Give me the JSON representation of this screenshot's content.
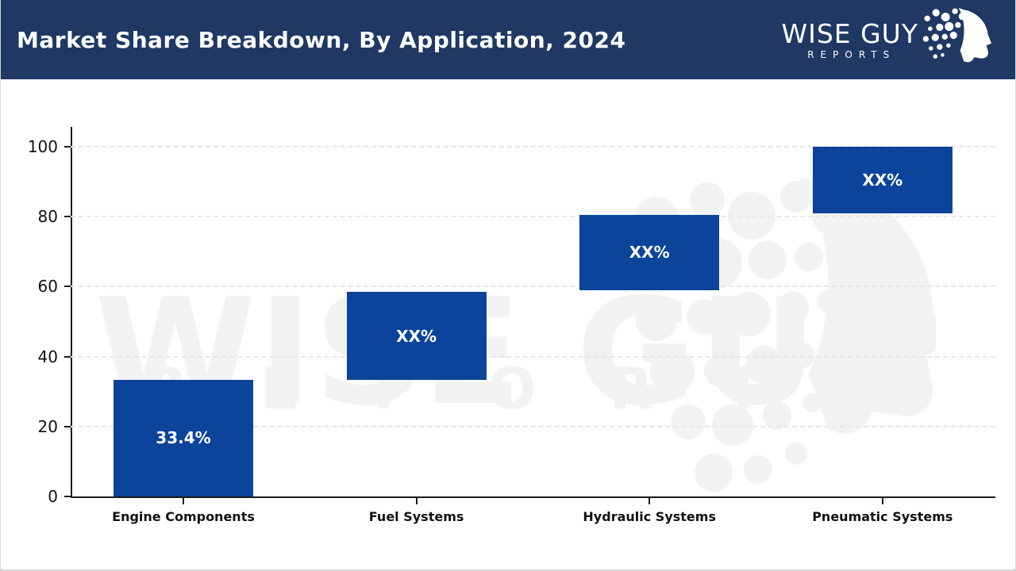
{
  "header": {
    "title": "Market Share Breakdown, By Application, 2024",
    "bg_color": "#1f3864",
    "logo": {
      "wordmark": "WISE GUY",
      "subtext": "REPORTS",
      "head_icon": "dotted-face-profile"
    }
  },
  "watermark": {
    "line1": "WISE GUY",
    "line2": "REPORTS",
    "color": "#f2f2f2"
  },
  "chart_data": {
    "type": "bar",
    "subtype": "floating-waterfall",
    "title": "Market Share Breakdown, By Application, 2024",
    "categories": [
      "Engine Components",
      "Fuel Systems",
      "Hydraulic Systems",
      "Pneumatic Systems"
    ],
    "segments": [
      {
        "category": "Engine Components",
        "start": 0,
        "end": 33.4,
        "label": "33.4%"
      },
      {
        "category": "Fuel Systems",
        "start": 33.4,
        "end": 58.4,
        "label": "XX%"
      },
      {
        "category": "Hydraulic Systems",
        "start": 59,
        "end": 80.6,
        "label": "XX%"
      },
      {
        "category": "Pneumatic Systems",
        "start": 81,
        "end": 100,
        "label": "XX%"
      }
    ],
    "yticks": [
      0,
      20,
      40,
      60,
      80,
      100
    ],
    "ylim": [
      0,
      105
    ],
    "xlabel": "",
    "ylabel": "",
    "grid": "horizontal-dashed",
    "legend_position": "none",
    "bar_color": "#0c449b",
    "bar_label_color": "#ffffff",
    "axis_color": "#1a1a1a"
  }
}
